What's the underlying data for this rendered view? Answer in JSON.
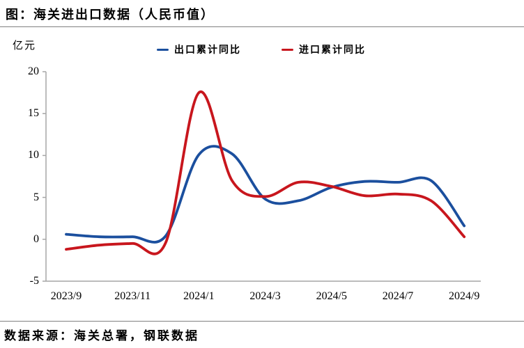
{
  "title": "图：海关进出口数据（人民币值）",
  "unit_label": "亿元",
  "source": "数据来源：海关总署，钢联数据",
  "legend": [
    {
      "label": "出口累计同比",
      "color": "#1B4F9E"
    },
    {
      "label": "进口累计同比",
      "color": "#C8161D"
    }
  ],
  "chart_data": {
    "type": "line",
    "title": "图：海关进出口数据（人民币值）",
    "ylabel": "亿元",
    "x": [
      "2023/9",
      "2023/10",
      "2023/11",
      "2023/12",
      "2024/1",
      "2024/2",
      "2024/3",
      "2024/4",
      "2024/5",
      "2024/6",
      "2024/7",
      "2024/8",
      "2024/9"
    ],
    "x_tick_labels": [
      "2023/9",
      "2023/11",
      "2024/1",
      "2024/3",
      "2024/5",
      "2024/7",
      "2024/9"
    ],
    "x_tick_indices": [
      0,
      2,
      4,
      6,
      8,
      10,
      12
    ],
    "series": [
      {
        "name": "出口累计同比",
        "color": "#1B4F9E",
        "values": [
          0.6,
          0.3,
          0.3,
          0.4,
          10.1,
          10.2,
          4.8,
          4.6,
          6.2,
          6.9,
          6.8,
          7.0,
          1.6
        ]
      },
      {
        "name": "进口累计同比",
        "color": "#C8161D",
        "values": [
          -1.2,
          -0.7,
          -0.5,
          -0.4,
          17.5,
          7.0,
          5.1,
          6.8,
          6.3,
          5.2,
          5.4,
          4.6,
          0.3
        ]
      }
    ],
    "ylim": [
      -5,
      20
    ],
    "yticks": [
      20,
      15,
      10,
      5,
      0,
      -5
    ],
    "grid": false,
    "legend_position": "top",
    "smooth": true
  },
  "colors": {
    "axis": "#a6a6a6",
    "rule": "#7f7f7f",
    "text": "#000000",
    "background": "#ffffff"
  }
}
